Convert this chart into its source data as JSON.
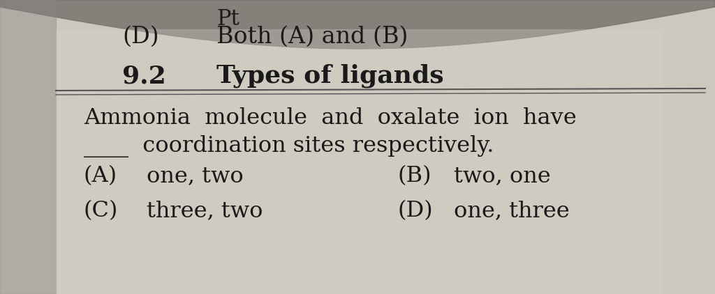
{
  "background_color": "#d4cfc6",
  "bg_gradient_top": "#7a7672",
  "bg_gradient_mid": "#ccc8be",
  "top_Pt": "Pt",
  "top_D_label": "(D)",
  "top_D_text": "Both (A) and (B)",
  "section_number": "9.2",
  "section_title": "Types of ligands",
  "q_line1": "Ammonia  molecule  and  oxalate  ion  have",
  "q_line2": "coordination sites respectively.",
  "q_blank": "____",
  "option_A_label": "(A)",
  "option_A_text": "one, two",
  "option_B_label": "(B)",
  "option_B_text": "two, one",
  "option_C_label": "(C)",
  "option_C_text": "three, two",
  "option_D_label": "(D)",
  "option_D_text": "one, three",
  "text_color": "#1a1a1a",
  "line_color": "#555555",
  "fig_width": 10.24,
  "fig_height": 4.22,
  "dpi": 100
}
